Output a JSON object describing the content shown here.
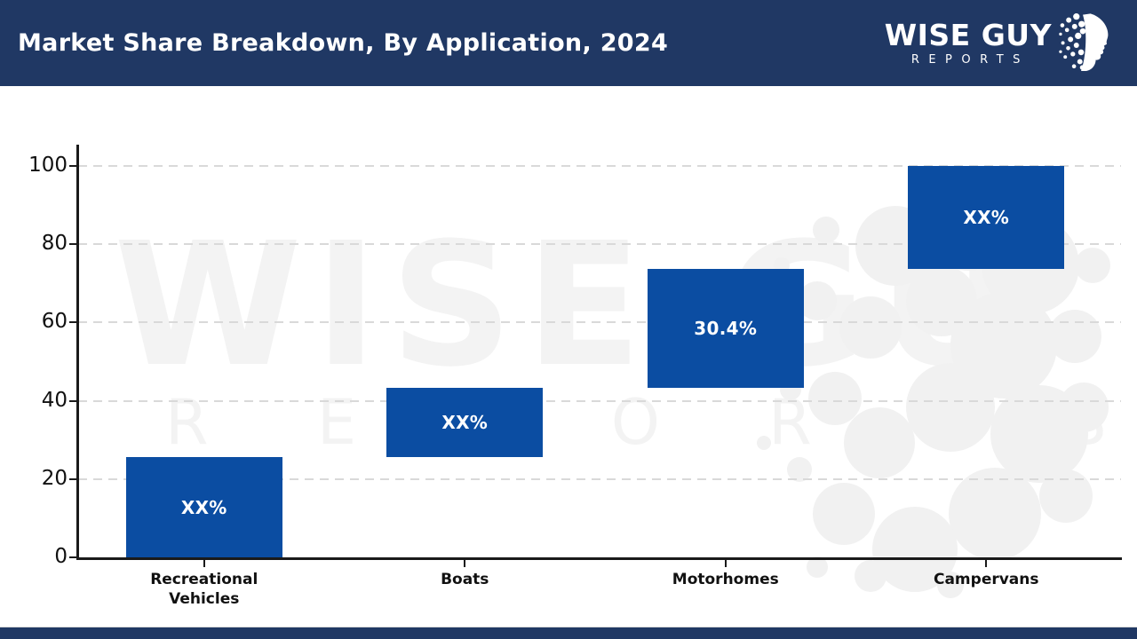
{
  "header": {
    "title": "Market Share Breakdown, By Application, 2024",
    "logo": {
      "line1": "WISE GUY",
      "line2": "REPORTS"
    }
  },
  "watermark": {
    "line1": "WISE GU",
    "line2": "R E P O R T S"
  },
  "colors": {
    "header_bg": "#203864",
    "footer_bg": "#203864",
    "bar": "#0b4da2",
    "bar_label": "#ffffff",
    "axis": "#1a1a1a",
    "grid": "#d9d9d9",
    "watermark": "#f3f3f3"
  },
  "chart_data": {
    "type": "bar",
    "subtype": "floating-waterfall",
    "title": "Market Share Breakdown, By Application, 2024",
    "categories": [
      "Recreational Vehicles",
      "Boats",
      "Motorhomes",
      "Campervans"
    ],
    "category_label_lines": [
      [
        "Recreational",
        "Vehicles"
      ],
      [
        "Boats"
      ],
      [
        "Motorhomes"
      ],
      [
        "Campervans"
      ]
    ],
    "segments": [
      {
        "category": "Recreational Vehicles",
        "from": 0,
        "to": 25.6,
        "label": "XX%"
      },
      {
        "category": "Boats",
        "from": 25.6,
        "to": 43.4,
        "label": "XX%"
      },
      {
        "category": "Motorhomes",
        "from": 43.4,
        "to": 73.8,
        "label": "30.4%"
      },
      {
        "category": "Campervans",
        "from": 73.8,
        "to": 100,
        "label": "XX%"
      }
    ],
    "xlabel": "",
    "ylabel": "",
    "ylim": [
      0,
      105
    ],
    "yticks": [
      0,
      20,
      40,
      60,
      80,
      100
    ],
    "grid": "horizontal-dashed",
    "legend": "none"
  }
}
